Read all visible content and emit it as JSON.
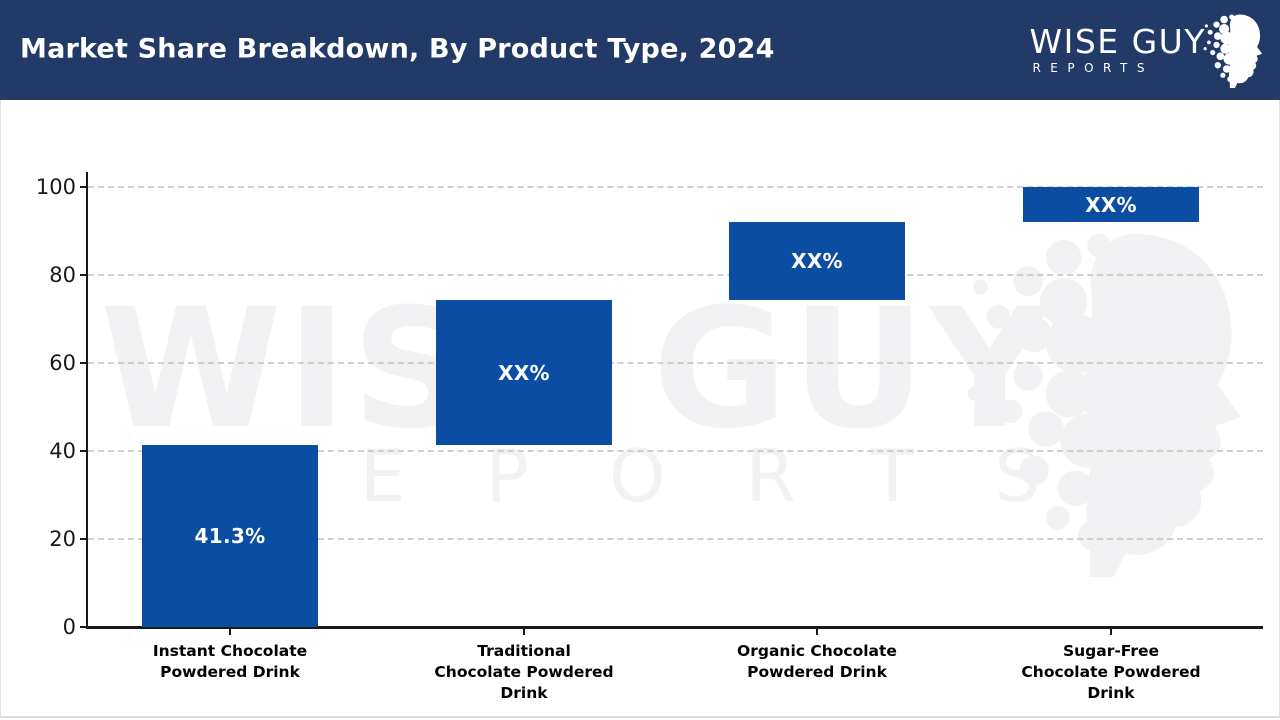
{
  "header": {
    "title": "Market Share Breakdown, By Product Type, 2024",
    "logo": {
      "line1": "WISE GUY",
      "line2": "REPORTS"
    }
  },
  "watermark": {
    "line1": "WISE GUY",
    "line2": "REPORTS"
  },
  "colors": {
    "banner": "#213a67",
    "title": "#ffffff",
    "bar": "#0b4da2",
    "bar_label": "#ffffff",
    "grid": "#cfcfcf",
    "axis": "#1a1a1a",
    "category_label": "#000000",
    "watermark": "#f2f2f4"
  },
  "chart_data": {
    "type": "bar",
    "subtype": "waterfall",
    "title": "Market Share Breakdown, By Product Type, 2024",
    "categories": [
      "Instant Chocolate\nPowdered Drink",
      "Traditional\nChocolate Powdered\nDrink",
      "Organic Chocolate\nPowdered Drink",
      "Sugar-Free\nChocolate Powdered\nDrink"
    ],
    "segments": [
      {
        "category": "Instant Chocolate Powdered Drink",
        "label": "41.3%",
        "start": 0,
        "end": 41.3
      },
      {
        "category": "Traditional Chocolate Powdered Drink",
        "label": "XX%",
        "start": 41.3,
        "end": 74.3
      },
      {
        "category": "Organic Chocolate Powdered Drink",
        "label": "XX%",
        "start": 74.3,
        "end": 92.0
      },
      {
        "category": "Sugar-Free Chocolate Powdered Drink",
        "label": "XX%",
        "start": 92.0,
        "end": 100.0
      }
    ],
    "values_displayed": [
      "41.3%",
      "XX%",
      "XX%",
      "XX%"
    ],
    "xlabel": "",
    "ylabel": "",
    "ylim": [
      0,
      100
    ],
    "yticks": [
      0,
      20,
      40,
      60,
      80,
      100
    ],
    "grid": "horizontal dashed",
    "legend": "none",
    "units": "percent market share"
  }
}
